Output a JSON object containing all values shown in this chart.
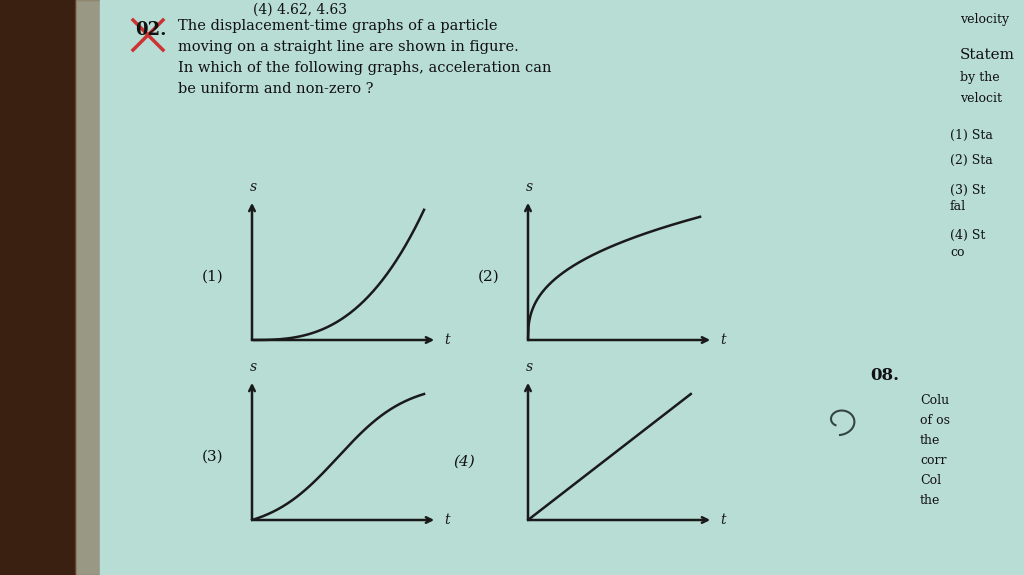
{
  "background_color": "#b8ddd5",
  "left_dark_color": "#4a2010",
  "text_color": "#111111",
  "cross_color": "#cc3333",
  "axis_color": "#1a1a1a",
  "curve_color": "#1a1a1a",
  "right_text_color": "#111111",
  "label_s": "s",
  "label_t": "t",
  "question_number": "02.",
  "question_lines": [
    "The displacement-time graphs of a particle",
    "moving on a straight line are shown in figure.",
    "In which of the following graphs, acceleration can",
    "be uniform and non-zero ?"
  ],
  "graph_labels": [
    "(1)",
    "(2)",
    "(3)",
    "(4)"
  ],
  "right_col_lines": [
    "velocity",
    "Statem",
    "by the",
    "velocit",
    "(1) Sta",
    "(2) Sta",
    "(3) St",
    "fal",
    "(4) St",
    "co"
  ],
  "bottom_right_lines": [
    "08.",
    "Colu",
    "of os",
    "the",
    "corr",
    "Col",
    "the"
  ],
  "annotation_4": "(4)",
  "fig_width": 10.24,
  "fig_height": 5.75
}
